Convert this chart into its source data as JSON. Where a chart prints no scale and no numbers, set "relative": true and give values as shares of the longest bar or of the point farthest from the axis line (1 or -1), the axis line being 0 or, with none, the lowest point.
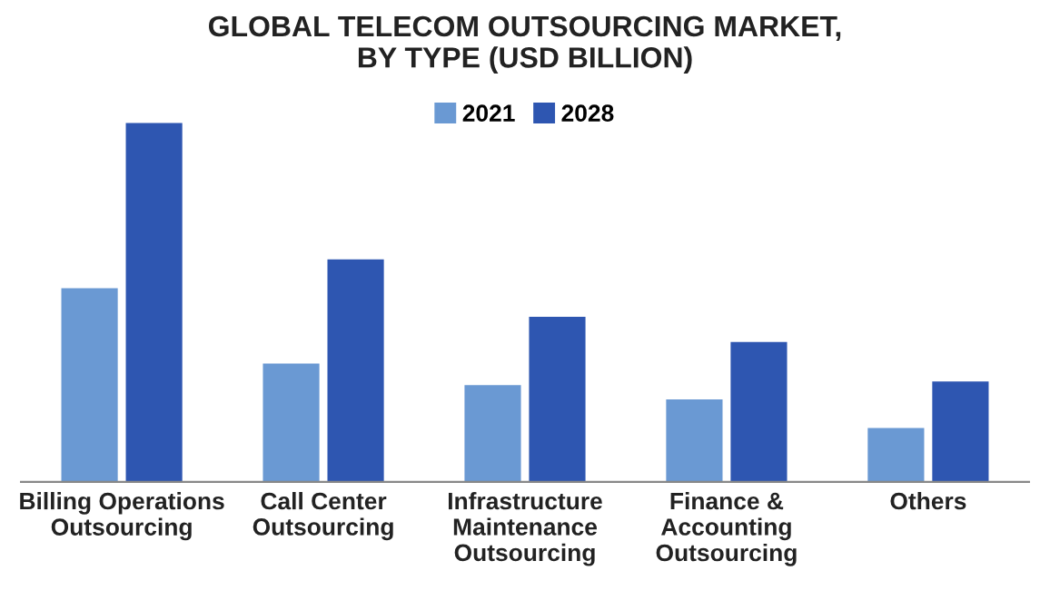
{
  "chart_data": {
    "type": "bar",
    "title": "GLOBAL TELECOM OUTSOURCING MARKET,\nBY TYPE (USD BILLION)",
    "categories": [
      "Billing Operations\nOutsourcing",
      "Call Center\nOutsourcing",
      "Infrastructure\nMaintenance\nOutsourcing",
      "Finance &\nAccounting\nOutsourcing",
      "Others"
    ],
    "relative": true,
    "series": [
      {
        "name": "2021",
        "color": "#6a99d3",
        "values": [
          0.54,
          0.33,
          0.27,
          0.23,
          0.15
        ]
      },
      {
        "name": "2028",
        "color": "#2e56b1",
        "values": [
          1,
          0.62,
          0.46,
          0.39,
          0.28
        ]
      }
    ],
    "legend": "top"
  }
}
